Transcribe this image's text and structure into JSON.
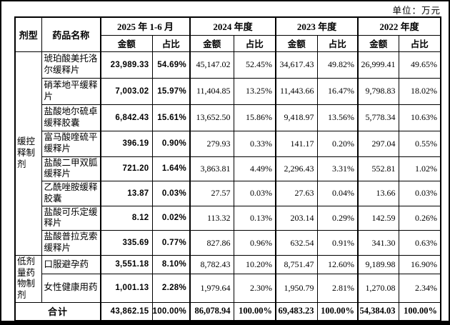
{
  "unit_label": "单位：万元",
  "colors": {
    "text": "#000000",
    "border": "#000000",
    "background": "#ffffff"
  },
  "table": {
    "headers": {
      "dosage_form": "剂型",
      "drug_name": "药品名称",
      "amount": "金额",
      "ratio": "占比",
      "periods": [
        "2025 年 1-6 月",
        "2024 年度",
        "2023 年度",
        "2022 年度"
      ]
    },
    "groups": [
      {
        "dosage_form": "缓控释制剂",
        "rows": [
          {
            "name": "琥珀酸美托洛尔缓释片",
            "values": [
              "23,989.33",
              "54.69%",
              "45,147.02",
              "52.45%",
              "34,617.43",
              "49.82%",
              "26,999.41",
              "49.65%"
            ]
          },
          {
            "name": "硝苯地平缓释片",
            "values": [
              "7,003.02",
              "15.97%",
              "11,404.85",
              "13.25%",
              "11,443.66",
              "16.47%",
              "9,798.83",
              "18.02%"
            ]
          },
          {
            "name": "盐酸地尔硫卓缓释胶囊",
            "values": [
              "6,842.43",
              "15.61%",
              "13,652.50",
              "15.86%",
              "9,418.97",
              "13.56%",
              "5,778.34",
              "10.63%"
            ]
          },
          {
            "name": "富马酸喹硫平缓释片",
            "values": [
              "396.19",
              "0.90%",
              "279.93",
              "0.33%",
              "141.17",
              "0.20%",
              "297.04",
              "0.55%"
            ]
          },
          {
            "name": "盐酸二甲双胍缓释片",
            "values": [
              "721.20",
              "1.64%",
              "3,863.81",
              "4.49%",
              "2,296.43",
              "3.31%",
              "552.81",
              "1.02%"
            ]
          },
          {
            "name": "乙酰唑胺缓释胶囊",
            "values": [
              "13.87",
              "0.03%",
              "27.57",
              "0.03%",
              "27.63",
              "0.04%",
              "13.66",
              "0.03%"
            ]
          },
          {
            "name": "盐酸可乐定缓释片",
            "values": [
              "8.12",
              "0.02%",
              "113.32",
              "0.13%",
              "203.14",
              "0.29%",
              "142.59",
              "0.26%"
            ]
          },
          {
            "name": "盐酸普拉克索缓释片",
            "values": [
              "335.69",
              "0.77%",
              "827.86",
              "0.96%",
              "632.54",
              "0.91%",
              "341.30",
              "0.63%"
            ]
          }
        ]
      },
      {
        "dosage_form": "低剂量药物制剂",
        "rows": [
          {
            "name": "口服避孕药",
            "values": [
              "3,551.18",
              "8.10%",
              "8,782.43",
              "10.20%",
              "8,751.47",
              "12.60%",
              "9,189.98",
              "16.90%"
            ]
          },
          {
            "name": "女性健康用药",
            "values": [
              "1,001.13",
              "2.28%",
              "1,979.64",
              "2.30%",
              "1,950.79",
              "2.81%",
              "1,270.08",
              "2.34%"
            ]
          }
        ]
      }
    ],
    "total": {
      "label": "合计",
      "values": [
        "43,862.15",
        "100.00%",
        "86,078.94",
        "100.00%",
        "69,483.23",
        "100.00%",
        "54,384.03",
        "100.00%"
      ]
    }
  }
}
